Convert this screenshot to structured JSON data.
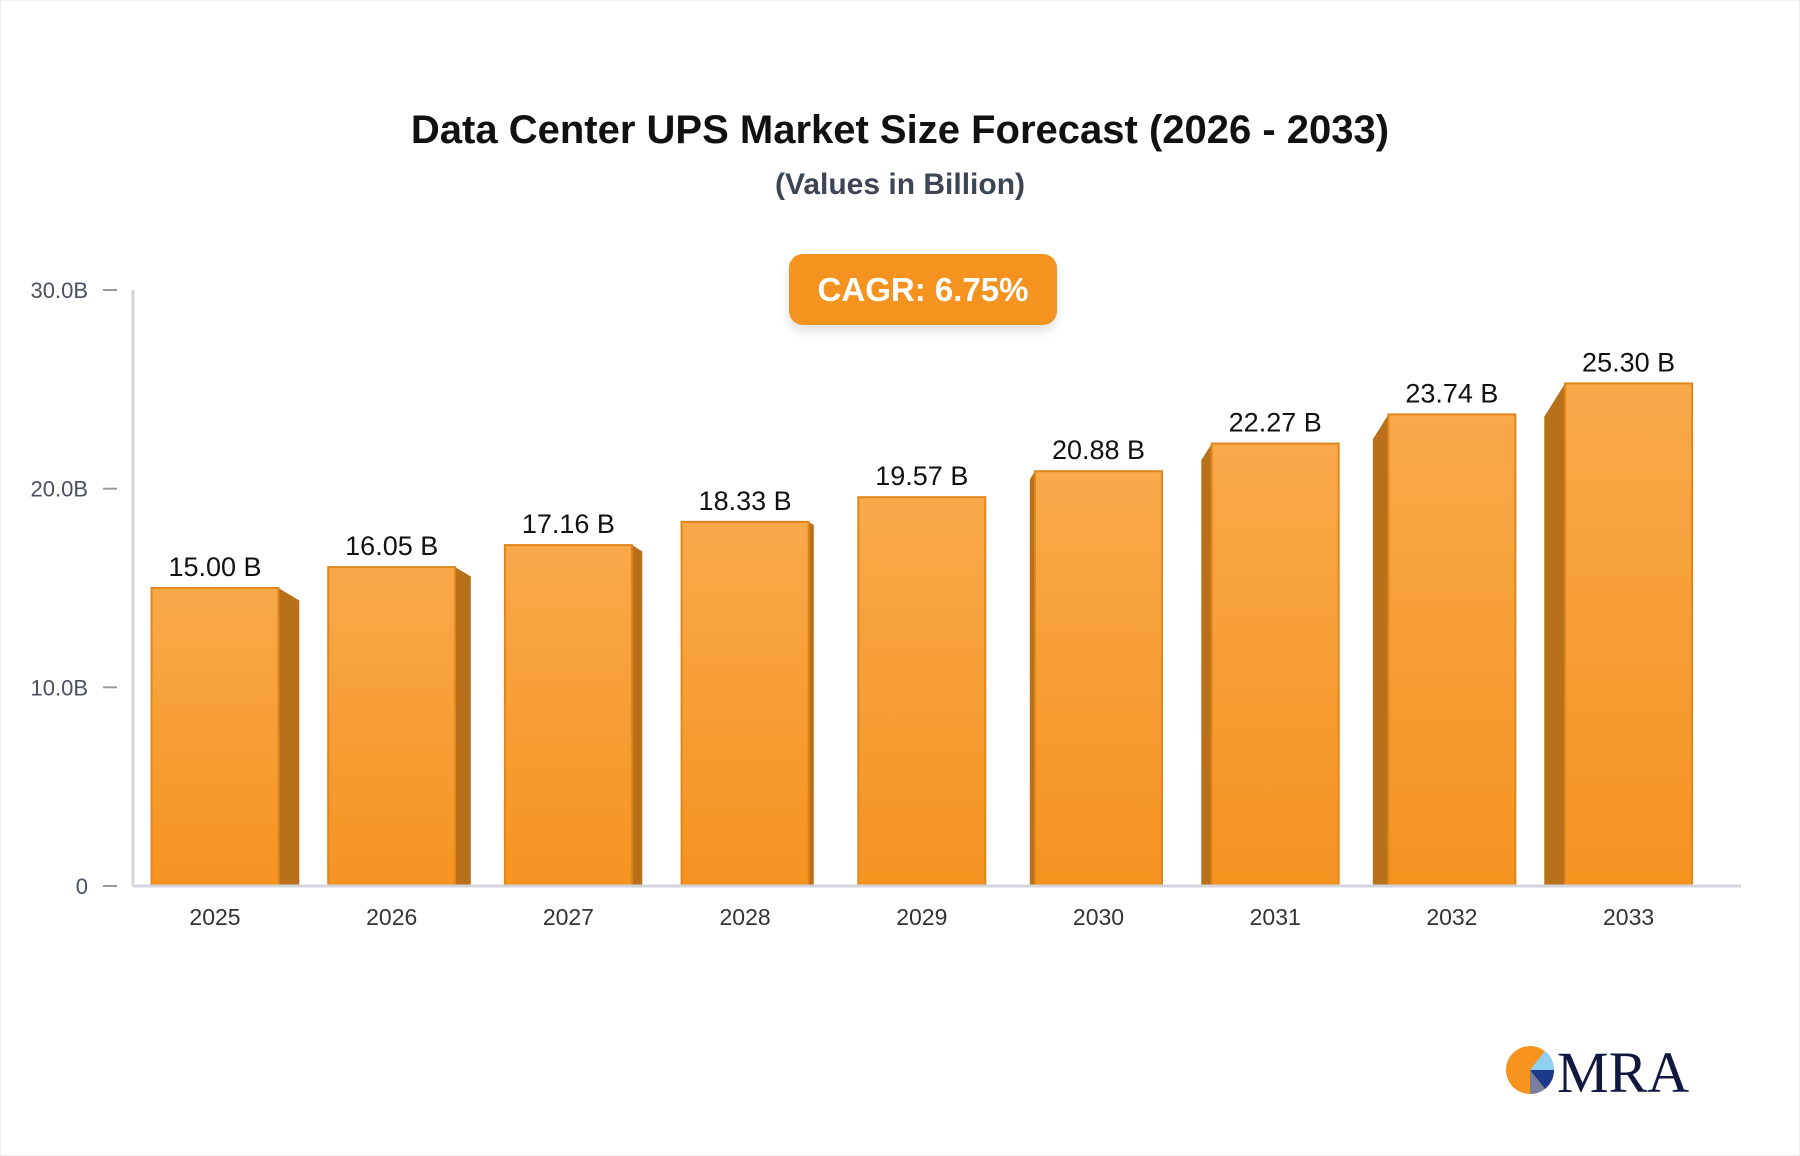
{
  "chart_data": {
    "type": "bar",
    "title": "Data Center UPS Market Size Forecast (2026 - 2033)",
    "subtitle": "(Values in Billion)",
    "annotation": "CAGR: 6.75%",
    "categories": [
      "2025",
      "2026",
      "2027",
      "2028",
      "2029",
      "2030",
      "2031",
      "2032",
      "2033"
    ],
    "values": [
      15.0,
      16.05,
      17.16,
      18.33,
      19.57,
      20.88,
      22.27,
      23.74,
      25.3
    ],
    "data_labels": [
      "15.00 B",
      "16.05 B",
      "17.16 B",
      "18.33 B",
      "19.57 B",
      "20.88 B",
      "22.27 B",
      "23.74 B",
      "25.30 B"
    ],
    "yticks": [
      0,
      10,
      20,
      30
    ],
    "ytick_labels": [
      "0",
      "10.0B",
      "20.0B",
      "30.0B"
    ],
    "ylim": [
      0,
      30
    ],
    "xlabel": "",
    "ylabel": "",
    "grid": false,
    "colors": {
      "bar_top": "#f8a94a",
      "bar_bottom": "#f59320",
      "bar_side": "#b8701a",
      "bar_edge": "#e0861c",
      "cagr_bg": "#f59320"
    }
  },
  "logo": {
    "text": "MRA"
  }
}
